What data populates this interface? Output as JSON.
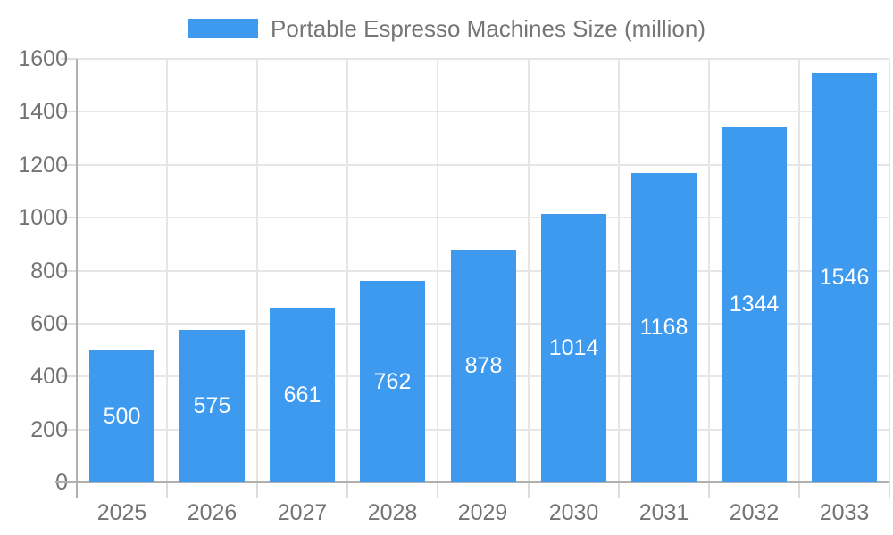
{
  "legend": {
    "label": "Portable Espresso Machines Size (million)"
  },
  "colors": {
    "bar": "#3D9AEE",
    "grid": "#E6E6E6",
    "minor_tick": "#DCDCDC",
    "axis": "#B0B0B0",
    "tick_label": "#737373",
    "legend_label": "#757575",
    "value_label": "#FFFFFF",
    "background": "#FFFFFF"
  },
  "chart_data": {
    "type": "bar",
    "title": "Portable Espresso Machines Size (million)",
    "categories": [
      "2025",
      "2026",
      "2027",
      "2028",
      "2029",
      "2030",
      "2031",
      "2032",
      "2033"
    ],
    "values": [
      500,
      575,
      661,
      762,
      878,
      1014,
      1168,
      1344,
      1546
    ],
    "value_labels": [
      "500",
      "575",
      "661",
      "762",
      "878",
      "1014",
      "1168",
      "1344",
      "1546"
    ],
    "xlabel": "",
    "ylabel": "",
    "ylim": [
      0,
      1600
    ],
    "ytick_interval": 200,
    "ytick_labels": [
      "0",
      "200",
      "400",
      "600",
      "800",
      "1000",
      "1200",
      "1400",
      "1600"
    ],
    "grid": true,
    "legend_position": "top",
    "value_label_position": "inside-center"
  }
}
